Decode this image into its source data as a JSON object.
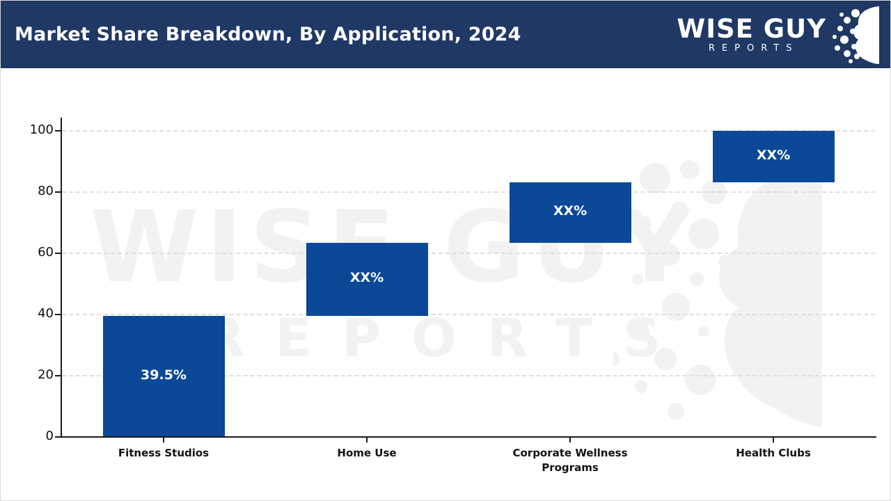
{
  "header": {
    "title": "Market Share Breakdown, By Application, 2024",
    "background": "#1f3864",
    "logo": {
      "line1": "WISE GUY",
      "line2": "REPORTS"
    }
  },
  "watermark": {
    "line1": "WISE GUY",
    "line2": "REPORTS"
  },
  "chart_data": {
    "type": "bar",
    "subtype": "waterfall",
    "title": "Market Share Breakdown, By Application, 2024",
    "categories": [
      "Fitness Studios",
      "Home Use",
      "Corporate Wellness Programs",
      "Health Clubs"
    ],
    "segments": [
      {
        "category": "Fitness Studios",
        "start": 0,
        "end": 39.5,
        "label": "39.5%"
      },
      {
        "category": "Home Use",
        "start": 39.5,
        "end": 63.5,
        "label": "XX%"
      },
      {
        "category": "Corporate Wellness Programs",
        "start": 63.5,
        "end": 83.2,
        "label": "XX%"
      },
      {
        "category": "Health Clubs",
        "start": 83.2,
        "end": 100,
        "label": "XX%"
      },
      {
        "note": "only first segment shows numeric value; others masked as XX%"
      }
    ],
    "y_ticks": [
      0,
      20,
      40,
      60,
      80,
      100
    ],
    "ylim": [
      0,
      104
    ],
    "xlabel": "",
    "ylabel": "",
    "grid": "horizontal dashed",
    "legend": "none",
    "bar_color": "#0b4898",
    "label_color": "#ffffff",
    "axis_color": "#1a1a1a",
    "gridline_color": "#dedede"
  }
}
